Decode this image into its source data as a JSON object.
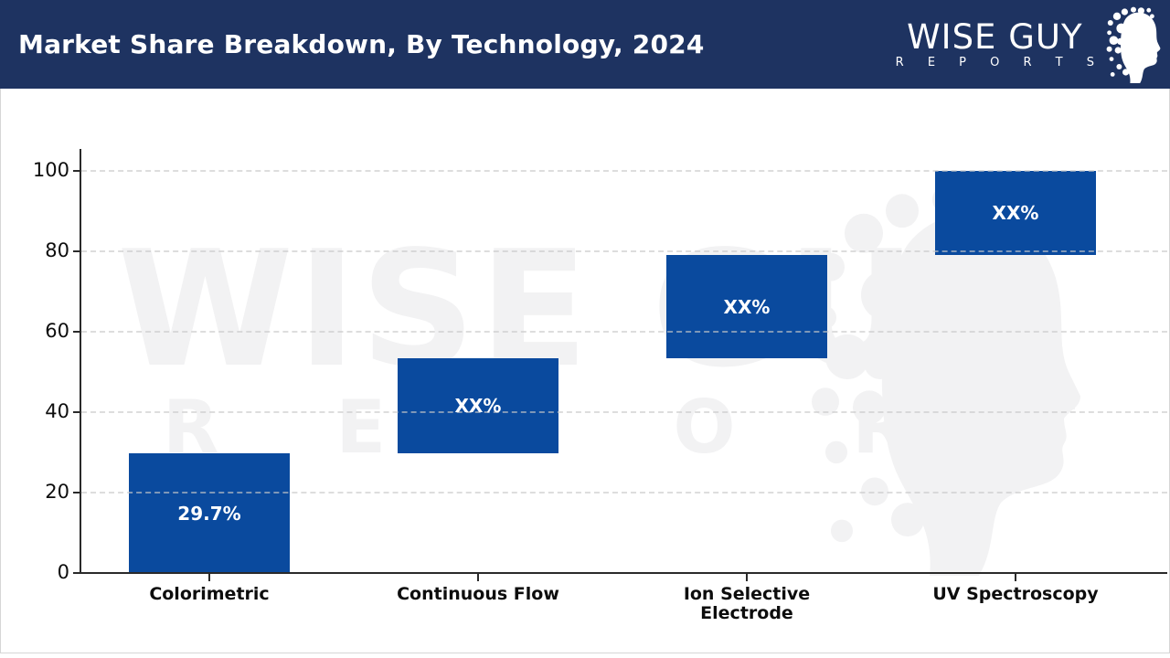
{
  "header": {
    "title": "Market Share Breakdown, By Technology, 2024"
  },
  "logo": {
    "name": "WISE GUY",
    "subtitle": "R E P O R T S"
  },
  "watermark": {
    "text": "WISE GU",
    "subtext": "R E P O R T S"
  },
  "colors": {
    "header_bg": "#1e3361",
    "bar": "#0a4a9e",
    "bar_label": "#ffffff",
    "axis": "#2a2a2a",
    "grid": "#c8c8c8",
    "watermark": "#f2f2f3"
  },
  "chart_data": {
    "type": "bar",
    "subtype": "waterfall",
    "title": "Market Share Breakdown, By Technology, 2024",
    "xlabel": "",
    "ylabel": "",
    "ylim": [
      0,
      105
    ],
    "yticks": [
      0,
      20,
      40,
      60,
      80,
      100
    ],
    "grid": "horizontal-dashed",
    "legend": "none",
    "categories": [
      "Colorimetric",
      "Continuous Flow",
      "Ion Selective\nElectrode",
      "UV Spectroscopy"
    ],
    "segments": [
      {
        "category": "Colorimetric",
        "start": 0,
        "end": 29.7,
        "label": "29.7%"
      },
      {
        "category": "Continuous Flow",
        "start": 29.7,
        "end": 53.5,
        "label": "XX%"
      },
      {
        "category": "Ion Selective\nElectrode",
        "start": 53.5,
        "end": 79.0,
        "label": "XX%"
      },
      {
        "category": "UV Spectroscopy",
        "start": 79.0,
        "end": 100.0,
        "label": "XX%"
      }
    ]
  }
}
